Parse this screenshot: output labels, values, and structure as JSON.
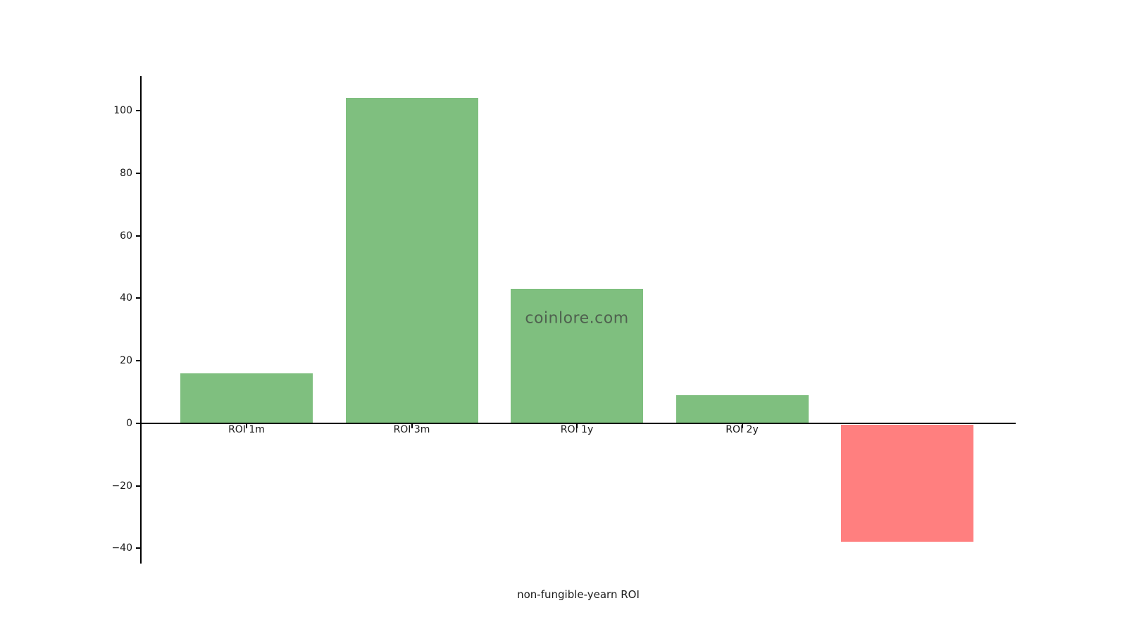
{
  "chart_data": {
    "type": "bar",
    "title": "non-fungible-yearn ROI",
    "watermark": "coinlore.com",
    "categories": [
      "ROI 1m",
      "ROI 3m",
      "ROI 1y",
      "ROI 2y",
      ""
    ],
    "values": [
      16,
      104,
      43,
      9,
      -38
    ],
    "positive_color": "#7fbf7f",
    "negative_color": "#ff7f7f",
    "axis_color": "#000000",
    "text_color": "#1a1a1a",
    "y_ticks": [
      {
        "value": -40,
        "label": "−40"
      },
      {
        "value": -20,
        "label": "−20"
      },
      {
        "value": 0,
        "label": "0"
      },
      {
        "value": 20,
        "label": "20"
      },
      {
        "value": 40,
        "label": "40"
      },
      {
        "value": 60,
        "label": "60"
      },
      {
        "value": 80,
        "label": "80"
      },
      {
        "value": 100,
        "label": "100"
      }
    ],
    "ylim": [
      -44.9,
      111.1
    ],
    "xlabel": "",
    "ylabel": "",
    "grid": false,
    "legend": null
  }
}
